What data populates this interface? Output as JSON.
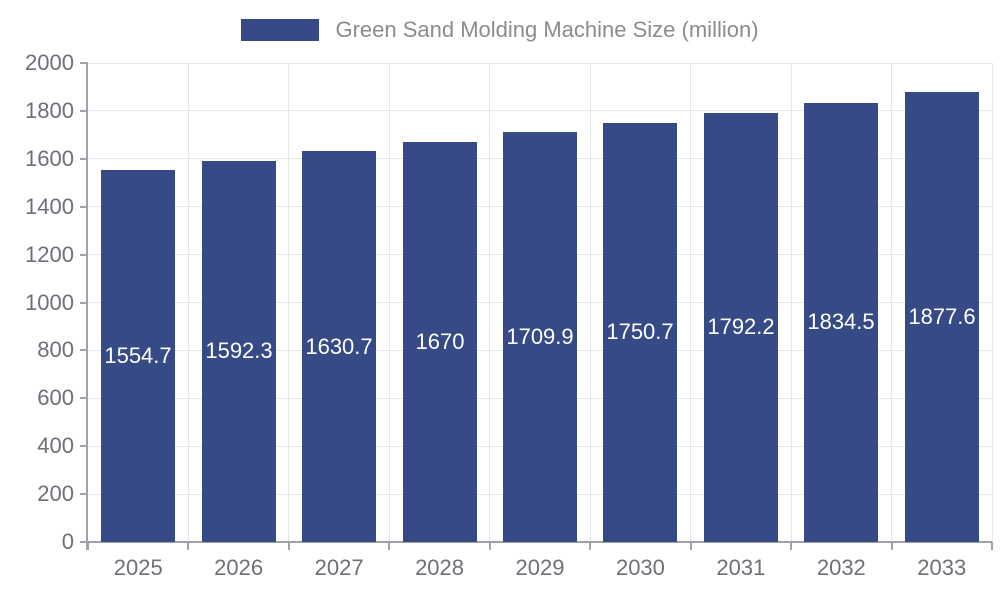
{
  "legend": {
    "label": "Green Sand Molding Machine Size (million)",
    "swatch_color": "#364a85"
  },
  "chart_data": {
    "type": "bar",
    "title": "Green Sand Molding Machine Size (million)",
    "categories": [
      "2025",
      "2026",
      "2027",
      "2028",
      "2029",
      "2030",
      "2031",
      "2032",
      "2033"
    ],
    "series": [
      {
        "name": "Green Sand Molding Machine Size (million)",
        "values": [
          1554.7,
          1592.3,
          1630.7,
          1670,
          1709.9,
          1750.7,
          1792.2,
          1834.5,
          1877.6
        ]
      }
    ],
    "value_labels": [
      "1554.7",
      "1592.3",
      "1630.7",
      "1670",
      "1709.9",
      "1750.7",
      "1792.2",
      "1834.5",
      "1877.6"
    ],
    "xlabel": "",
    "ylabel": "",
    "ylim": [
      0,
      2000
    ],
    "ytick_step": 200,
    "ytick_labels": [
      "0",
      "200",
      "400",
      "600",
      "800",
      "1000",
      "1200",
      "1400",
      "1600",
      "1800",
      "2000"
    ],
    "grid": true,
    "legend_position": "top",
    "value_label_position": "inside-center",
    "colors": {
      "bar": "#364a85",
      "value_label": "#ffffff",
      "axis_line": "#9fa2a8",
      "axis_label": "#6e7079",
      "gridline": "#e3e6ec",
      "legend_text": "#8c8c8c",
      "background": "#ffffff"
    }
  }
}
